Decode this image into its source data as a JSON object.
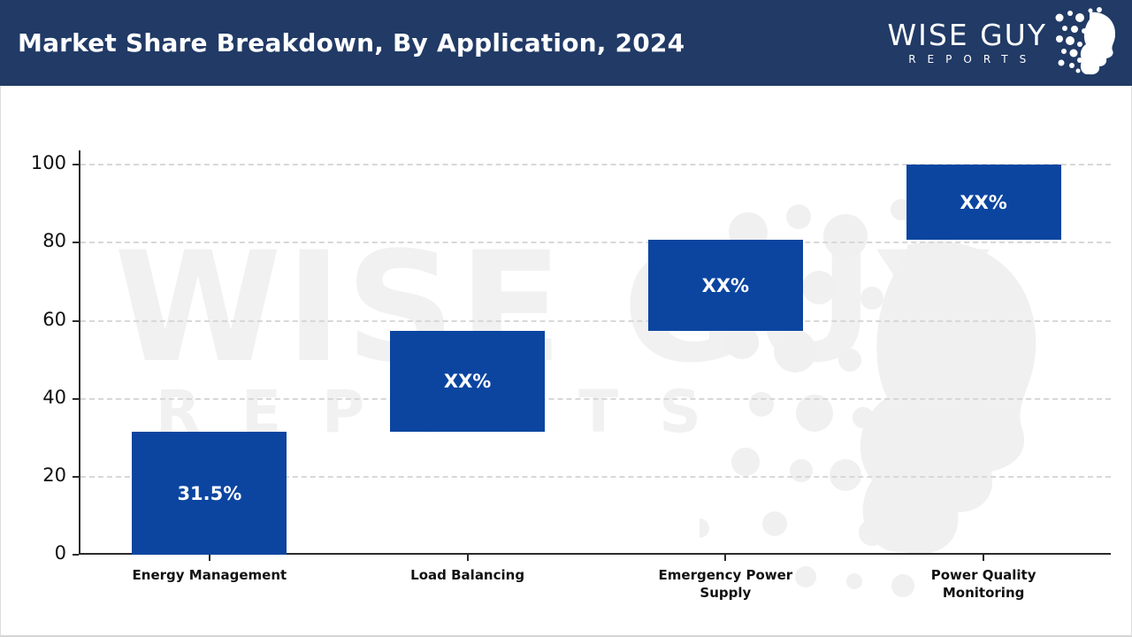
{
  "header": {
    "title": "Market Share Breakdown, By Application, 2024",
    "logo_line1": "WISE GUY",
    "logo_line2": "REPORTS",
    "bg_color": "#213a66"
  },
  "watermark": {
    "line1": "WISE GUY",
    "line2": "REPORTS"
  },
  "chart_data": {
    "type": "bar",
    "subtype": "waterfall",
    "title": "Market Share Breakdown, By Application, 2024",
    "categories": [
      "Energy Management",
      "Load Balancing",
      "Emergency Power\nSupply",
      "Power Quality\nMonitoring"
    ],
    "segments": [
      {
        "start": 0,
        "end": 31.5,
        "label": "31.5%"
      },
      {
        "start": 31.5,
        "end": 57.3,
        "label": "XX%"
      },
      {
        "start": 57.3,
        "end": 80.7,
        "label": "XX%"
      },
      {
        "start": 80.7,
        "end": 100,
        "label": "XX%"
      }
    ],
    "y_ticks": [
      0,
      20,
      40,
      60,
      80,
      100
    ],
    "ylim": [
      0,
      103.7
    ],
    "xlabel": "",
    "ylabel": "",
    "grid": "horizontal dashed",
    "legend": "none",
    "bar_color": "#0b45a0",
    "bar_label_color": "#ffffff",
    "axis_color": "#2b2b2b",
    "gridline_color": "#d8d8d8"
  }
}
